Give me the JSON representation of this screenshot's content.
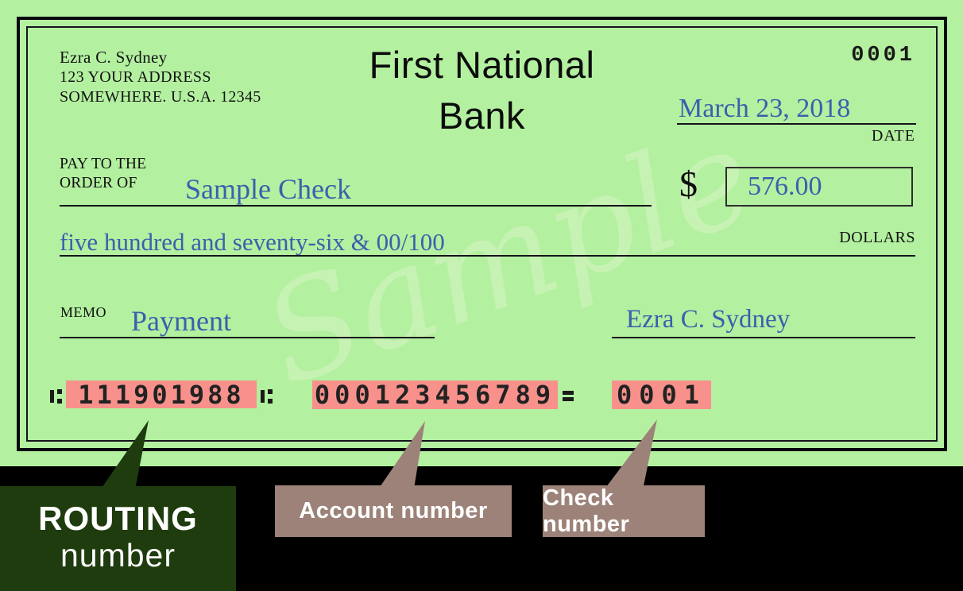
{
  "colors": {
    "paper_green": "#b3f0a0",
    "watermark_green": "#c6f2b3",
    "highlight_pink": "#f8918b",
    "ink_blue": "#3c5fad",
    "routing_callout_green": "#1e3c0e",
    "label_callout_taupe": "#9c8278",
    "background_black": "#000000"
  },
  "check": {
    "payer_name": "Ezra C. Sydney",
    "payer_address1": "123 YOUR ADDRESS",
    "payer_address2": "SOMEWHERE. U.S.A. 12345",
    "bank_line1": "First National",
    "bank_line2": "Bank",
    "top_check_number": "0001",
    "date_value": "March 23, 2018",
    "date_label": "DATE",
    "pay_to_line1": "PAY TO THE",
    "pay_to_line2": "ORDER OF",
    "payee": "Sample Check",
    "currency_symbol": "$",
    "amount_numeric": "576.00",
    "amount_words": "five hundred and seventy-six & 00/100",
    "dollars_label": "DOLLARS",
    "memo_label": "MEMO",
    "memo_value": "Payment",
    "signature": "Ezra C. Sydney",
    "watermark": "Sample",
    "micr_routing": "111901988",
    "micr_account": "000123456789",
    "micr_check": "0001",
    "micr_transit_symbol_name": "micr-transit-icon",
    "micr_onus_symbol_name": "micr-onus-icon"
  },
  "callouts": {
    "routing_line1": "ROUTING",
    "routing_line2": "number",
    "account_label": "Account number",
    "check_label": "Check number"
  }
}
